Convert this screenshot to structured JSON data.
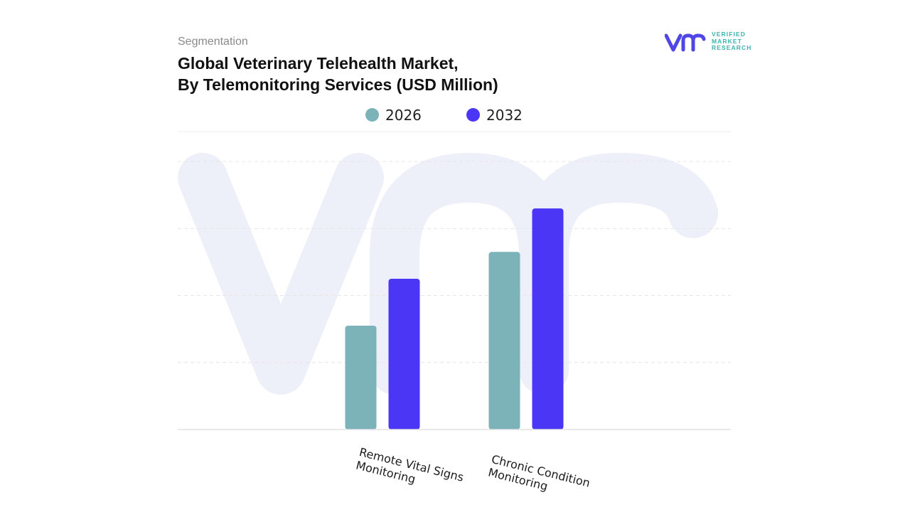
{
  "header": {
    "eyebrow": "Segmentation",
    "title_line1": "Global Veterinary Telehealth Market,",
    "title_line2": "By Telemonitoring Services (USD Million)"
  },
  "logo": {
    "line1": "VERIFIED",
    "line2": "MARKET",
    "line3": "RESEARCH",
    "color_mark": "#4f46e5",
    "color_text": "#3bb3b1"
  },
  "chart_data": {
    "type": "bar",
    "categories": [
      "Remote Vital Signs Monitoring",
      "Chronic Condition Monitoring"
    ],
    "series": [
      {
        "name": "2026",
        "color": "#7bb3b8",
        "values": [
          31,
          53
        ]
      },
      {
        "name": "2032",
        "color": "#4b36f5",
        "values": [
          45,
          66
        ]
      }
    ],
    "ylim": [
      0,
      90
    ],
    "grid": true,
    "legend_position": "top-center",
    "xlabel": "",
    "ylabel": ""
  }
}
